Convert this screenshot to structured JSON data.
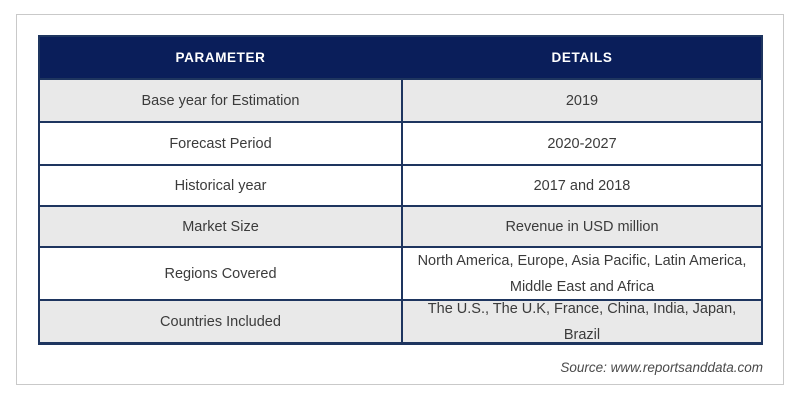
{
  "chart_data": {
    "type": "table",
    "columns": [
      "PARAMETER",
      "DETAILS"
    ],
    "rows": [
      {
        "parameter": "Base year for Estimation",
        "details": "2019"
      },
      {
        "parameter": "Forecast Period",
        "details": "2020-2027"
      },
      {
        "parameter": "Historical year",
        "details": "2017 and 2018"
      },
      {
        "parameter": "Market Size",
        "details": "Revenue in USD million"
      },
      {
        "parameter": "Regions Covered",
        "details": "North America, Europe, Asia Pacific, Latin America, Middle East and Africa"
      },
      {
        "parameter": "Countries Included",
        "details": "The U.S., The  U.K, France, China, India, Japan, Brazil"
      }
    ],
    "source": "Source: www.reportsanddata.com"
  },
  "colors": {
    "header_bg": "#0a1e5a",
    "header_text": "#ffffff",
    "row_shaded_bg": "#e9e9e9",
    "row_plain_bg": "#ffffff",
    "border": "#1e355f",
    "body_text": "#3b3b3b",
    "source_text": "#4a4a4a",
    "outer_frame_border": "#c9c9c9"
  }
}
